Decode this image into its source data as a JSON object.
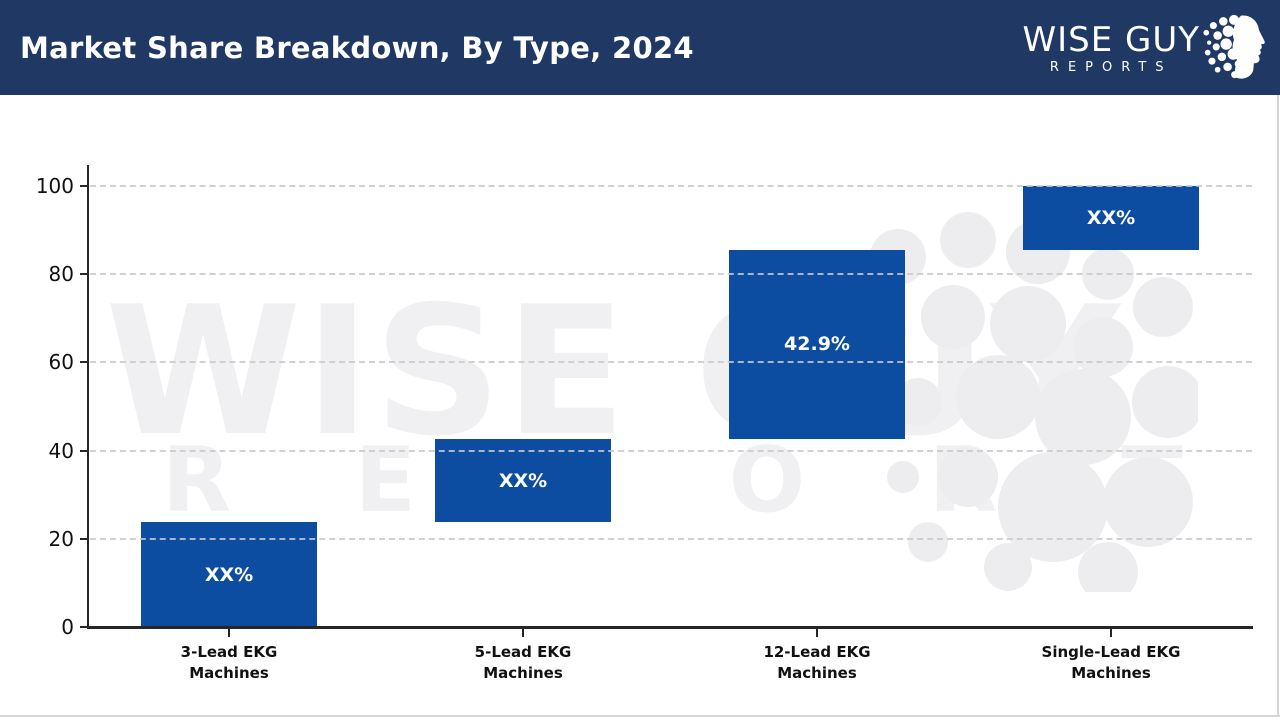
{
  "header": {
    "title": "Market Share Breakdown, By Type, 2024",
    "bg_color": "#1F3864",
    "logo": {
      "name": "WISE GUY",
      "sub": "REPORTS"
    }
  },
  "watermark": {
    "line1": "WISE GUY",
    "line2": "R E P O R T S"
  },
  "chart_data": {
    "type": "bar",
    "subtype": "waterfall-floating-bars",
    "title": "Market Share Breakdown, By Type, 2024",
    "xlabel": "",
    "ylabel": "",
    "ylim": [
      0,
      100
    ],
    "yticks": [
      0,
      20,
      40,
      60,
      80,
      100
    ],
    "grid": "horizontal-dashed-above-bars",
    "legend": "none",
    "bar_color": "#0C4DA2",
    "label_color": "#FFFFFF",
    "categories": [
      "3-Lead EKG Machines",
      "5-Lead EKG Machines",
      "12-Lead EKG Machines",
      "Single-Lead EKG Machines"
    ],
    "bars": [
      {
        "category_lines": [
          "3-Lead EKG",
          "Machines"
        ],
        "start": 0,
        "end": 23.7,
        "label": "XX%"
      },
      {
        "category_lines": [
          "5-Lead EKG",
          "Machines"
        ],
        "start": 23.7,
        "end": 42.7,
        "label": "XX%"
      },
      {
        "category_lines": [
          "12-Lead EKG",
          "Machines"
        ],
        "start": 42.7,
        "end": 85.5,
        "label": "42.9%"
      },
      {
        "category_lines": [
          "Single-Lead EKG",
          "Machines"
        ],
        "start": 85.5,
        "end": 100,
        "label": "XX%"
      }
    ]
  }
}
